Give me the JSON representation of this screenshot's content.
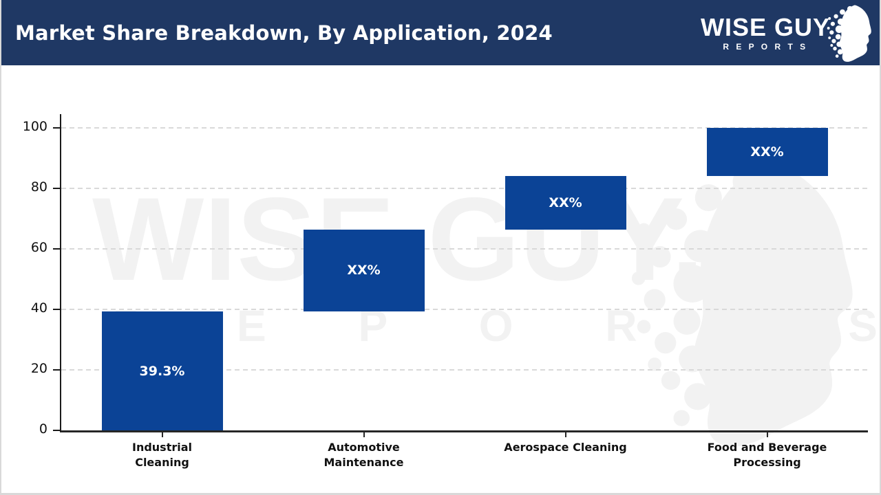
{
  "header": {
    "title": "Market Share Breakdown, By Application, 2024",
    "logo": {
      "line1": "WISE GUY",
      "line2": "R E P O R T S"
    }
  },
  "watermark": {
    "line1": "WISE GUY.",
    "line2": "R E P O R T S"
  },
  "chart_data": {
    "type": "bar",
    "subtype": "waterfall",
    "title": "Market Share Breakdown, By Application, 2024",
    "xlabel": "",
    "ylabel": "",
    "ylim": [
      0,
      100
    ],
    "yticks": [
      0,
      20,
      40,
      60,
      80,
      100
    ],
    "grid": "horizontal dashed",
    "legend": "none",
    "categories": [
      [
        "Industrial",
        "Cleaning"
      ],
      [
        "Automotive",
        "Maintenance"
      ],
      [
        "Aerospace Cleaning"
      ],
      [
        "Food and Beverage",
        "Processing"
      ]
    ],
    "segments": [
      {
        "category": "Industrial Cleaning",
        "start": 0,
        "end": 39.3,
        "label": "39.3%"
      },
      {
        "category": "Automotive Maintenance",
        "start": 39.3,
        "end": 66.4,
        "label": "XX%"
      },
      {
        "category": "Aerospace Cleaning",
        "start": 66.4,
        "end": 84.1,
        "label": "XX%"
      },
      {
        "category": "Food and Beverage Processing",
        "start": 84.1,
        "end": 100,
        "label": "XX%"
      }
    ]
  },
  "colors": {
    "header_bg": "#1F3864",
    "bar": "#0B4396",
    "bar_label": "#ffffff",
    "gridline": "#d9d9d9",
    "axis": "#1a1a1a",
    "watermark": "#f2f2f2"
  }
}
